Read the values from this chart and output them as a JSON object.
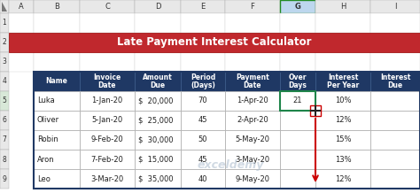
{
  "title": "Late Payment Interest Calculator",
  "title_bg": "#C0282D",
  "title_color": "#FFFFFF",
  "col_headers": [
    "Name",
    "Invoice\nDate",
    "Amount\nDue",
    "Period\n(Days)",
    "Payment\nDate",
    "Over\nDays",
    "Interest\nPer Year",
    "Interest\nDue"
  ],
  "header_bg": "#1F3864",
  "header_color": "#FFFFFF",
  "rows": [
    [
      "Luka",
      "1-Jan-20",
      "$  20,000",
      "70",
      "1-Apr-20",
      "21",
      "10%",
      ""
    ],
    [
      "Oliver",
      "5-Jan-20",
      "$  25,000",
      "45",
      "2-Apr-20",
      "",
      "12%",
      ""
    ],
    [
      "Robin",
      "9-Feb-20",
      "$  30,000",
      "50",
      "5-May-20",
      "",
      "15%",
      ""
    ],
    [
      "Aron",
      "7-Feb-20",
      "$  15,000",
      "45",
      "3-May-20",
      "",
      "13%",
      ""
    ],
    [
      "Leo",
      "3-Mar-20",
      "$  35,000",
      "40",
      "9-May-20",
      "",
      "12%",
      ""
    ]
  ],
  "excel_col_headers": [
    "A",
    "B",
    "C",
    "D",
    "E",
    "F",
    "G",
    "H",
    "I"
  ],
  "excel_row_headers": [
    "1",
    "2",
    "3",
    "4",
    "5",
    "6",
    "7",
    "8",
    "9"
  ],
  "watermark": "exceldemy"
}
